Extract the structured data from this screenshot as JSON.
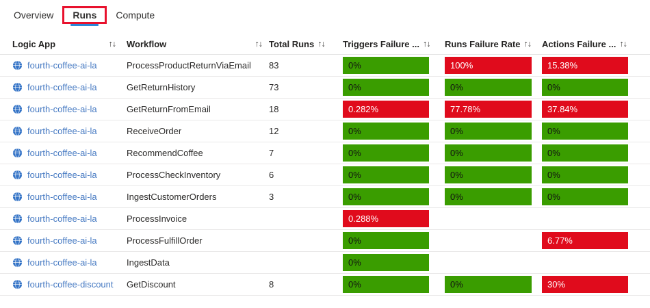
{
  "tabs": [
    {
      "label": "Overview",
      "selected": false
    },
    {
      "label": "Runs",
      "selected": true,
      "annotated": true
    },
    {
      "label": "Compute",
      "selected": false
    }
  ],
  "table": {
    "columns": [
      {
        "label": "Logic App",
        "sort": "↑↓"
      },
      {
        "label": "Workflow",
        "sort": "↑↓"
      },
      {
        "label": "Total Runs",
        "sort": "↑↓"
      },
      {
        "label": "Triggers Failure ...",
        "sort": "↑↓"
      },
      {
        "label": "Runs Failure Rate",
        "sort": "↑↓"
      },
      {
        "label": "Actions Failure ...",
        "sort": "↑↓"
      }
    ],
    "rows": [
      {
        "app": "fourth-coffee-ai-la",
        "workflow": "ProcessProductReturnViaEmail",
        "total_runs": "83",
        "triggers": {
          "text": "0%",
          "level": "good"
        },
        "runs": {
          "text": "100%",
          "level": "bad"
        },
        "actions": {
          "text": "15.38%",
          "level": "bad"
        }
      },
      {
        "app": "fourth-coffee-ai-la",
        "workflow": "GetReturnHistory",
        "total_runs": "73",
        "triggers": {
          "text": "0%",
          "level": "good"
        },
        "runs": {
          "text": "0%",
          "level": "good"
        },
        "actions": {
          "text": "0%",
          "level": "good"
        }
      },
      {
        "app": "fourth-coffee-ai-la",
        "workflow": "GetReturnFromEmail",
        "total_runs": "18",
        "triggers": {
          "text": "0.282%",
          "level": "bad"
        },
        "runs": {
          "text": "77.78%",
          "level": "bad"
        },
        "actions": {
          "text": "37.84%",
          "level": "bad"
        }
      },
      {
        "app": "fourth-coffee-ai-la",
        "workflow": "ReceiveOrder",
        "total_runs": "12",
        "triggers": {
          "text": "0%",
          "level": "good"
        },
        "runs": {
          "text": "0%",
          "level": "good"
        },
        "actions": {
          "text": "0%",
          "level": "good"
        }
      },
      {
        "app": "fourth-coffee-ai-la",
        "workflow": "RecommendCoffee",
        "total_runs": "7",
        "triggers": {
          "text": "0%",
          "level": "good"
        },
        "runs": {
          "text": "0%",
          "level": "good"
        },
        "actions": {
          "text": "0%",
          "level": "good"
        }
      },
      {
        "app": "fourth-coffee-ai-la",
        "workflow": "ProcessCheckInventory",
        "total_runs": "6",
        "triggers": {
          "text": "0%",
          "level": "good"
        },
        "runs": {
          "text": "0%",
          "level": "good"
        },
        "actions": {
          "text": "0%",
          "level": "good"
        }
      },
      {
        "app": "fourth-coffee-ai-la",
        "workflow": "IngestCustomerOrders",
        "total_runs": "3",
        "triggers": {
          "text": "0%",
          "level": "good"
        },
        "runs": {
          "text": "0%",
          "level": "good"
        },
        "actions": {
          "text": "0%",
          "level": "good"
        }
      },
      {
        "app": "fourth-coffee-ai-la",
        "workflow": "ProcessInvoice",
        "total_runs": "",
        "triggers": {
          "text": "0.288%",
          "level": "bad"
        },
        "runs": null,
        "actions": null
      },
      {
        "app": "fourth-coffee-ai-la",
        "workflow": "ProcessFulfillOrder",
        "total_runs": "",
        "triggers": {
          "text": "0%",
          "level": "good"
        },
        "runs": null,
        "actions": {
          "text": "6.77%",
          "level": "bad"
        }
      },
      {
        "app": "fourth-coffee-ai-la",
        "workflow": "IngestData",
        "total_runs": "",
        "triggers": {
          "text": "0%",
          "level": "good"
        },
        "runs": null,
        "actions": null
      },
      {
        "app": "fourth-coffee-discount",
        "workflow": "GetDiscount",
        "total_runs": "8",
        "triggers": {
          "text": "0%",
          "level": "good"
        },
        "runs": {
          "text": "0%",
          "level": "good"
        },
        "actions": {
          "text": "30%",
          "level": "bad"
        }
      }
    ]
  },
  "icons": {
    "logic_app": "globe-icon",
    "sort": "sort-arrows-icon"
  },
  "colors": {
    "badge_green": "#3a9d00",
    "badge_red": "#e00b1c",
    "link_blue": "#4579c2",
    "tab_underline_blue": "#2b88d8",
    "annotation_red": "#e8112d",
    "text": "#323130",
    "divider": "#e9e8e8"
  }
}
